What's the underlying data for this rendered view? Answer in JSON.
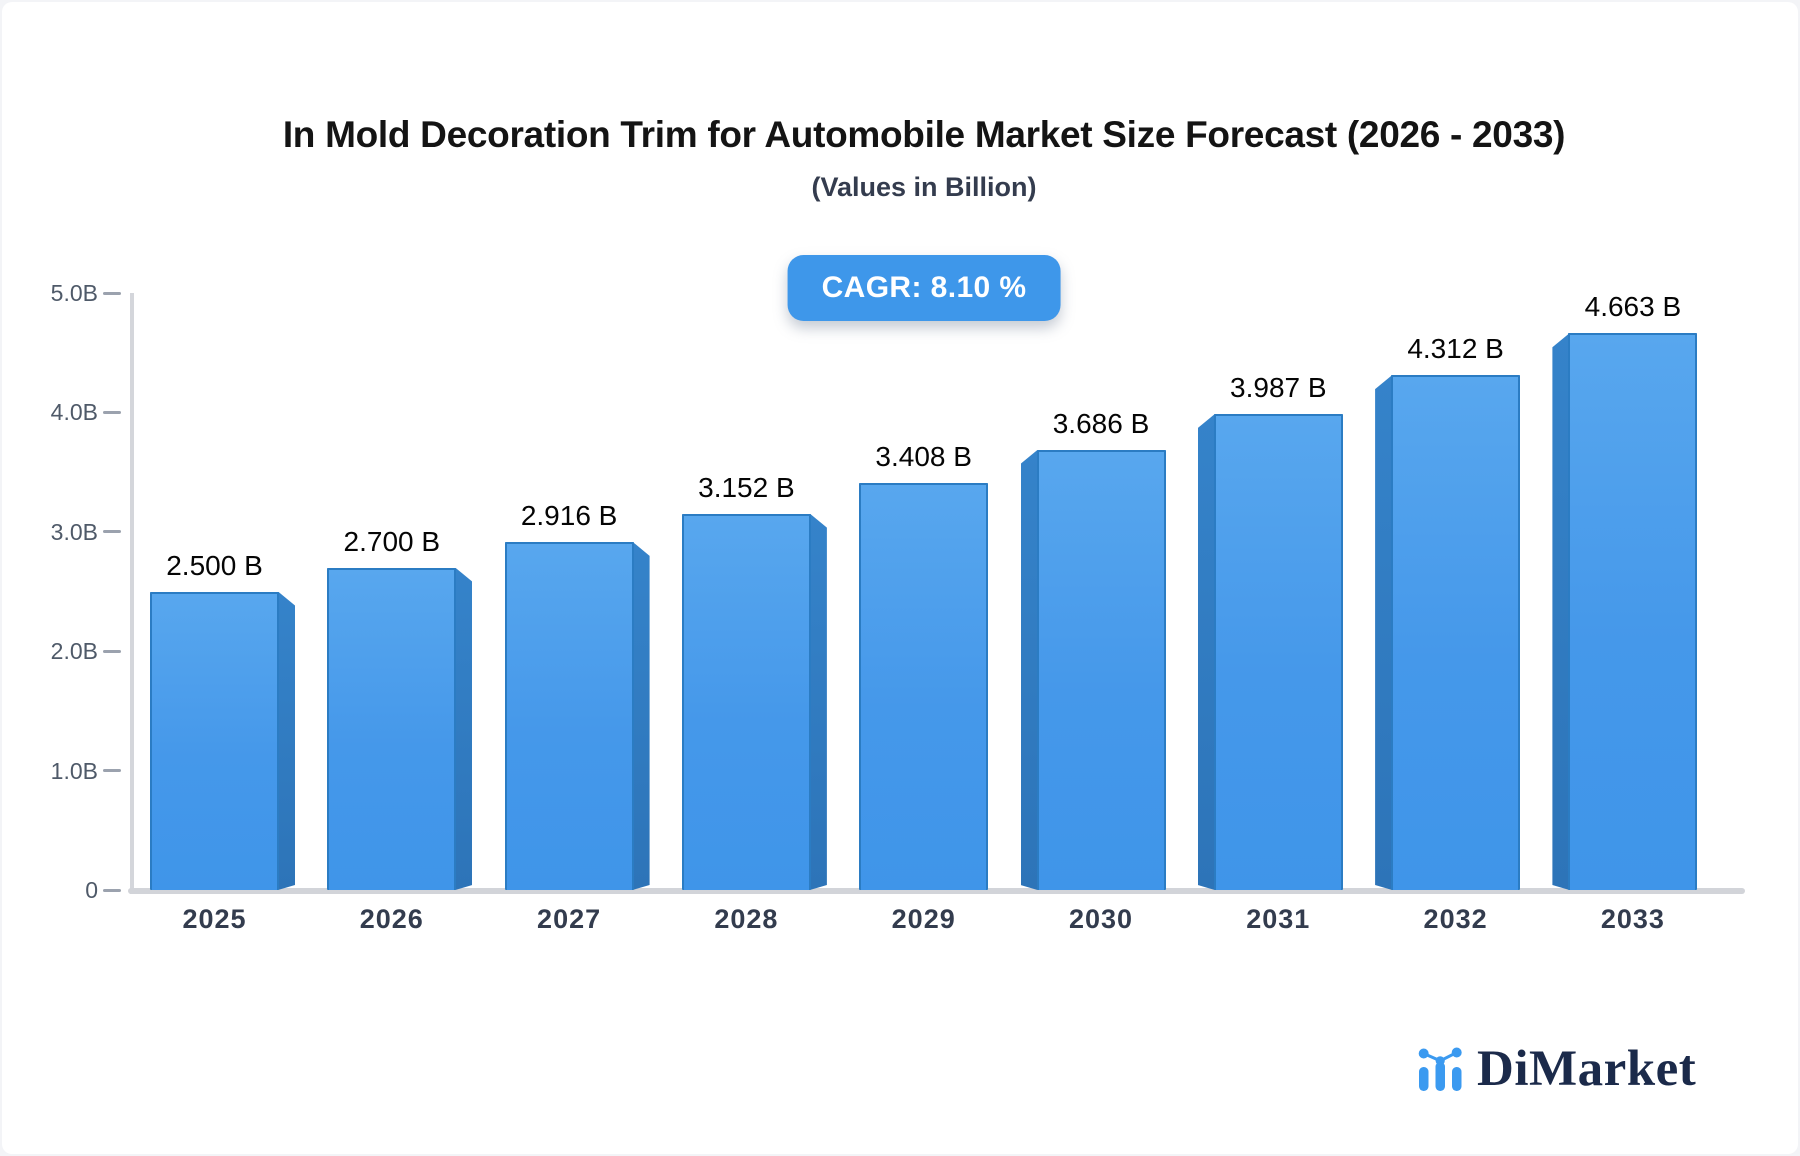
{
  "header": {
    "title": "In Mold Decoration Trim for Automobile Market Size Forecast (2026 - 2033)",
    "subtitle": "(Values in Billion)",
    "cagr_label": "CAGR: 8.10 %"
  },
  "branding": {
    "logo_text": "DiMarket",
    "logo_icon": "mini-bar-line-chart-icon"
  },
  "colors": {
    "accent_blue": "#3e97ea",
    "bar_face_top": "#58a7ee",
    "bar_face_bottom": "#3f95e9",
    "bar_border": "#2b7cc3",
    "bar_side": "#2f7cc1",
    "axis_gray": "#d4d6db",
    "tick_dash": "#9ba2ae",
    "ytick_text": "#4f5a69",
    "xtick_text": "#333c4e",
    "value_text": "#050505",
    "title_text": "#141414",
    "subtitle_text": "#343c4e",
    "logo_navy": "#1b2a4a",
    "logo_blue": "#3b9af0",
    "background": "#ffffff"
  },
  "chart_data": {
    "type": "bar",
    "title": "In Mold Decoration Trim for Automobile Market Size Forecast (2026 - 2033)",
    "subtitle": "(Values in Billion)",
    "cagr_percent": 8.1,
    "xlabel": "",
    "ylabel": "",
    "units": "Billion",
    "categories": [
      "2025",
      "2026",
      "2027",
      "2028",
      "2029",
      "2030",
      "2031",
      "2032",
      "2033"
    ],
    "values": [
      2.5,
      2.7,
      2.916,
      3.152,
      3.408,
      3.686,
      3.987,
      4.312,
      4.663
    ],
    "value_labels": [
      "2.500 B",
      "2.700 B",
      "2.916 B",
      "3.152 B",
      "3.408 B",
      "3.686 B",
      "3.987 B",
      "4.312 B",
      "4.663 B"
    ],
    "ylim": [
      0,
      5
    ],
    "yticks": [
      {
        "label": "0",
        "value": 0
      },
      {
        "label": "1.0B",
        "value": 1
      },
      {
        "label": "2.0B",
        "value": 2
      },
      {
        "label": "3.0B",
        "value": 3
      },
      {
        "label": "4.0B",
        "value": 4
      },
      {
        "label": "5.0B",
        "value": 5
      }
    ],
    "grid": false,
    "legend": "none",
    "bar_style": "3d-blue-gradient"
  }
}
